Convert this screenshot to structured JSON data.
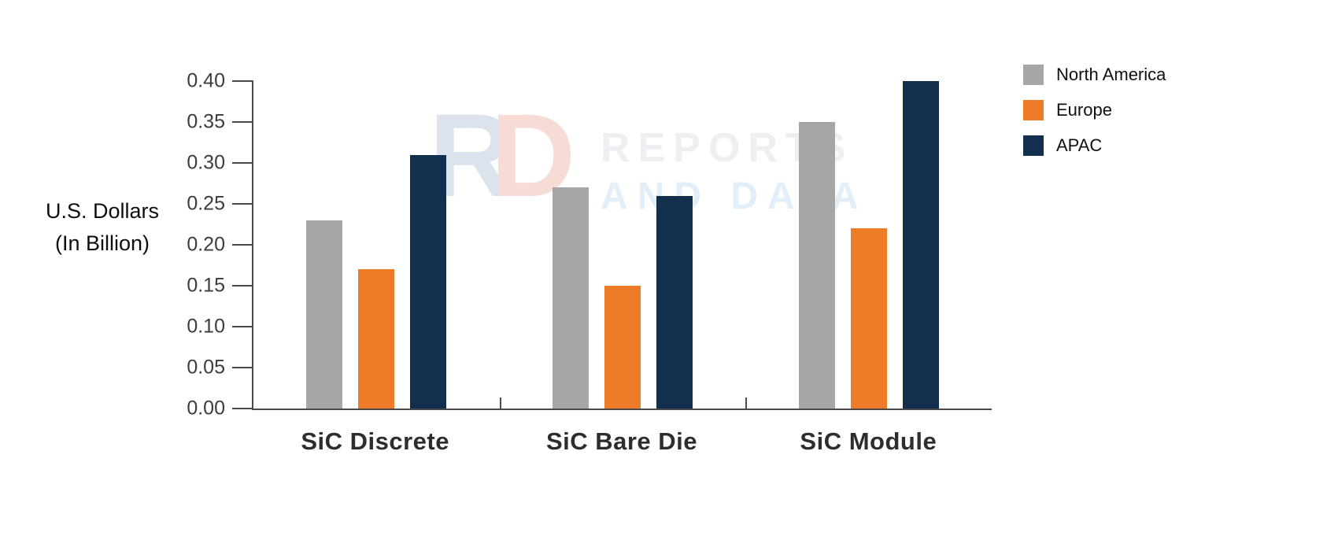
{
  "y_axis_title": {
    "line1": "U.S. Dollars",
    "line2": "(In Billion)"
  },
  "watermark": {
    "logo_letter_1": "R",
    "logo_letter_2": "D",
    "line1": "REPORTS",
    "line2": "AND DATA"
  },
  "chart_data": {
    "type": "bar",
    "title": "",
    "xlabel": "",
    "ylabel": "U.S. Dollars (In Billion)",
    "categories": [
      "SiC Discrete",
      "SiC Bare Die",
      "SiC Module"
    ],
    "series": [
      {
        "name": "North America",
        "color": "#a6a6a6",
        "values": [
          0.23,
          0.27,
          0.35
        ]
      },
      {
        "name": "Europe",
        "color": "#ee7b28",
        "values": [
          0.17,
          0.15,
          0.22
        ]
      },
      {
        "name": "APAC",
        "color": "#12304e",
        "values": [
          0.31,
          0.26,
          0.4
        ]
      }
    ],
    "ylim": [
      0,
      0.4
    ],
    "y_ticks": [
      0.0,
      0.05,
      0.1,
      0.15,
      0.2,
      0.25,
      0.3,
      0.35,
      0.4
    ],
    "y_tick_format_decimals": 2,
    "grid": false,
    "legend_position": "top-right"
  }
}
